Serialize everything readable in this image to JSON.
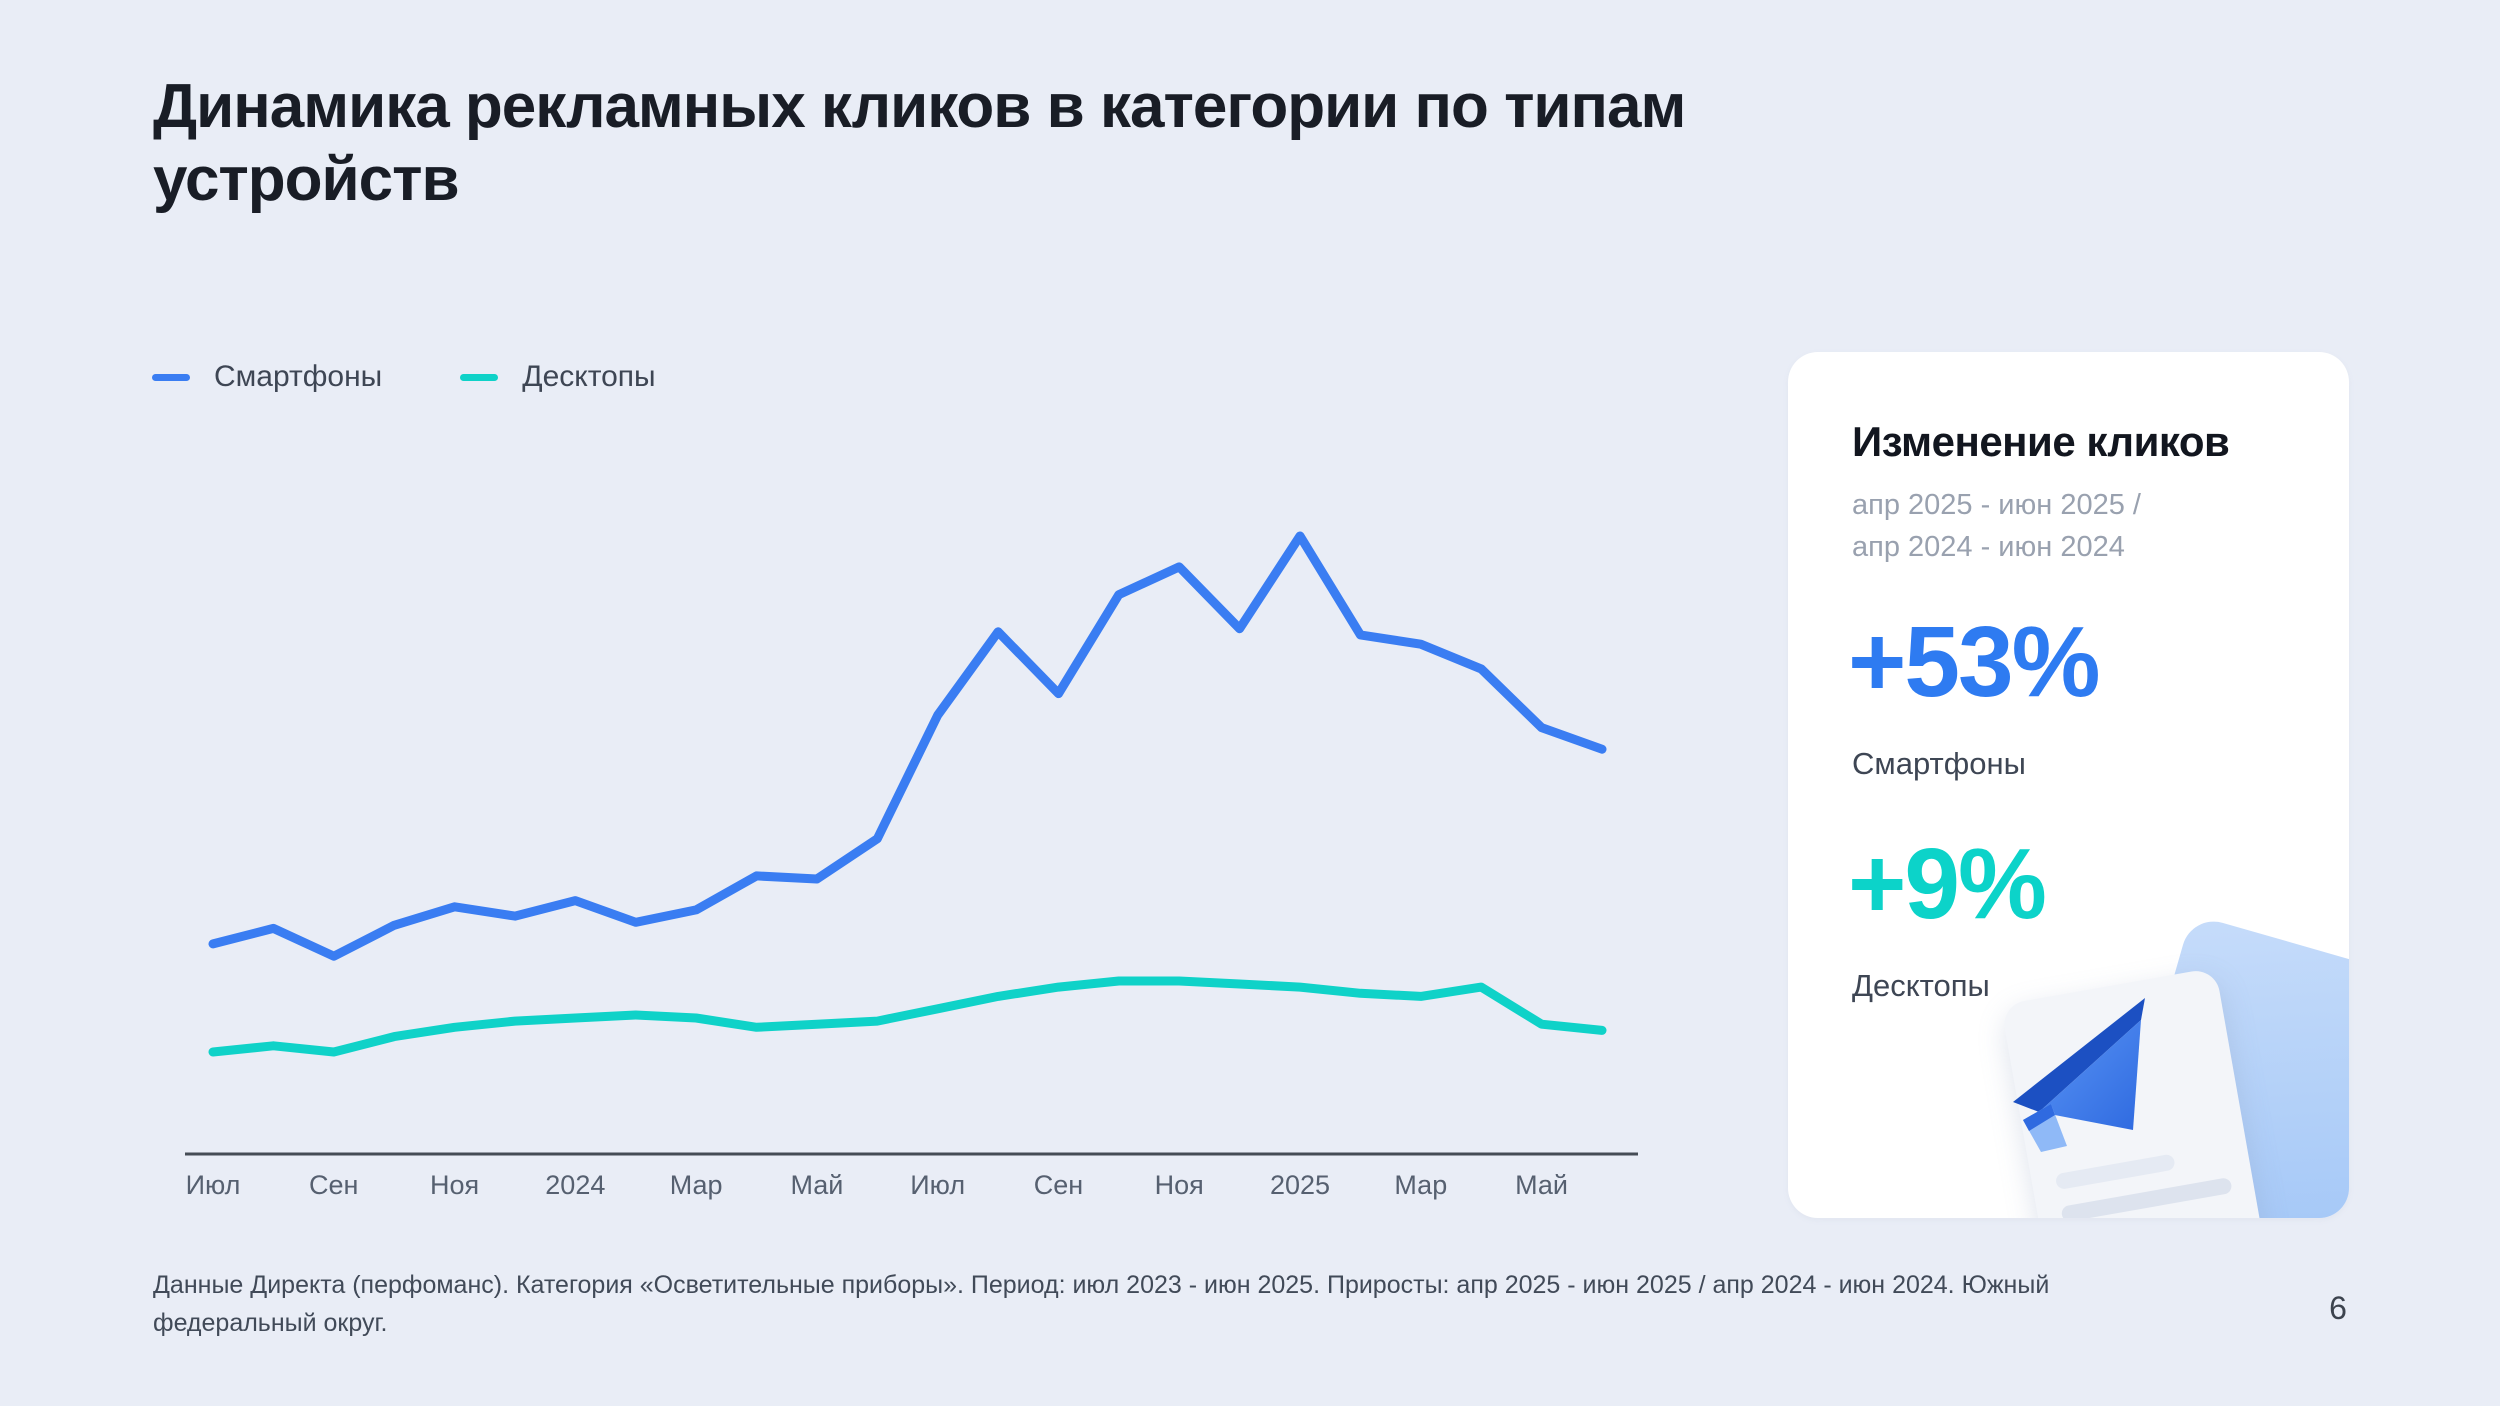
{
  "slide": {
    "title": "Динамика рекламных кликов в категории по типам\nустройств",
    "footnote": "Данные Директа (перфоманс). Категория «Осветительные приборы». Период: июл 2023 - июн 2025. Приросты: апр 2025 - июн 2025 / апр 2024 - июн 2024. Южный\nфедеральный округ.",
    "page_number": "6"
  },
  "colors": {
    "background": "#e9edf6",
    "smartphones_accent": "#3a7df2",
    "desktops_accent": "#0fd2c8",
    "card_background": "#ffffff",
    "title_text": "#191d26",
    "axis_text": "#566070",
    "muted_text": "#99a1af"
  },
  "summary_card": {
    "title": "Изменение кликов",
    "period": "апр 2025 - июн 2025 /\nапр 2024 - июн 2024",
    "metrics": [
      {
        "value": "+53%",
        "label": "Смартфоны",
        "color": "#2e7bf1"
      },
      {
        "value": "+9%",
        "label": "Десктопы",
        "color": "#0cd3c9"
      }
    ],
    "illustration": "folders-with-cursor-arrow"
  },
  "chart_data": {
    "type": "line",
    "title": "",
    "xlabel": "",
    "ylabel": "",
    "units": "indexed ad clicks (0-100, Jan 2025 smartphone peak = 100); y-axis not labeled in source",
    "grid": false,
    "legend_position": "top-left",
    "ylim": [
      0,
      110
    ],
    "x": [
      "июл 2023",
      "авг 2023",
      "сен 2023",
      "окт 2023",
      "ноя 2023",
      "дек 2023",
      "янв 2024",
      "фев 2024",
      "мар 2024",
      "апр 2024",
      "май 2024",
      "июн 2024",
      "июл 2024",
      "авг 2024",
      "сен 2024",
      "окт 2024",
      "ноя 2024",
      "дек 2024",
      "янв 2025",
      "фев 2025",
      "мар 2025",
      "апр 2025",
      "май 2025",
      "июн 2025"
    ],
    "x_tick_labels": [
      "Июл",
      "Сен",
      "Ноя",
      "2024",
      "Мар",
      "Май",
      "Июл",
      "Сен",
      "Ноя",
      "2025",
      "Мар",
      "Май"
    ],
    "x_tick_indices": [
      0,
      2,
      4,
      6,
      8,
      10,
      12,
      14,
      16,
      18,
      20,
      22
    ],
    "series": [
      {
        "name": "Смартфоны",
        "color": "#3a7df2",
        "values": [
          34,
          36.5,
          32,
          37,
          40,
          38.5,
          41,
          37.5,
          39.5,
          45,
          44.5,
          51,
          71,
          84.5,
          74.5,
          90.5,
          95,
          85,
          100,
          84,
          82.5,
          78.5,
          69,
          65.5
        ]
      },
      {
        "name": "Десктопы",
        "color": "#0fd2c8",
        "values": [
          16.5,
          17.5,
          16.5,
          19,
          20.5,
          21.5,
          22,
          22.5,
          22,
          20.5,
          21,
          21.5,
          23.5,
          25.5,
          27,
          28,
          28,
          27.5,
          27,
          26,
          25.5,
          27,
          21,
          20
        ]
      }
    ]
  }
}
